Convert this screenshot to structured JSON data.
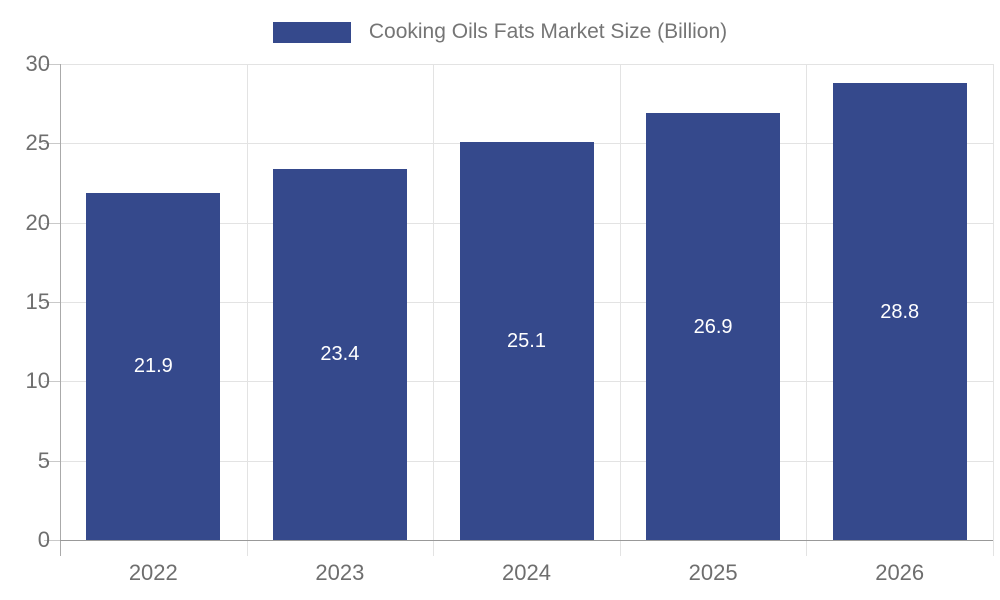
{
  "chart_data": {
    "type": "bar",
    "title": "Cooking Oils Fats Market Size (Billion)",
    "legend_position": "top",
    "categories": [
      "2022",
      "2023",
      "2024",
      "2025",
      "2026"
    ],
    "series": [
      {
        "name": "Cooking Oils Fats Market Size (Billion)",
        "values": [
          21.9,
          23.4,
          25.1,
          26.9,
          28.8
        ]
      }
    ],
    "value_labels": [
      "21.9",
      "23.4",
      "25.1",
      "26.9",
      "28.8"
    ],
    "xlabel": "",
    "ylabel": "",
    "ylim": [
      0,
      30
    ],
    "yticks": [
      0,
      5,
      10,
      15,
      20,
      25,
      30
    ],
    "grid": true,
    "colors": {
      "bar": "#35498C",
      "bar_label": "#FFFFFF",
      "axis_text": "#6E6E6E",
      "title_text": "#757575",
      "gridline": "#E3E3E3",
      "tick": "#C9C9C9",
      "x_axis_line": "#999999",
      "y_axis_line": "#AAAAAA",
      "background": "#FFFFFF"
    }
  }
}
